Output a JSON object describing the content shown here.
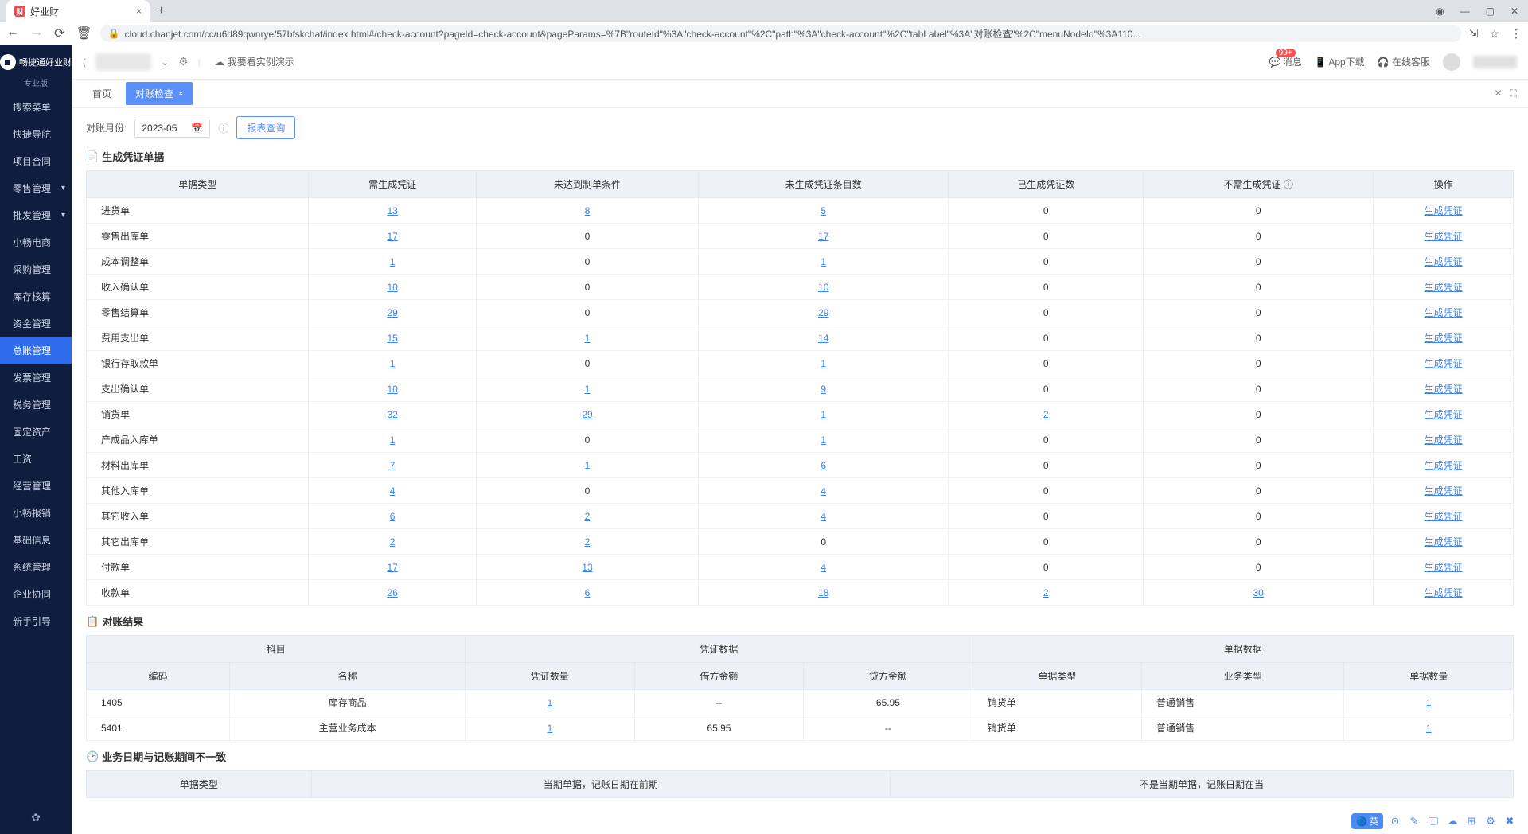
{
  "browser": {
    "tab_title": "好业财",
    "url": "cloud.chanjet.com/cc/u6d89qwnrye/57bfskchat/index.html#/check-account?pageId=check-account&pageParams=%7B\"routeId\"%3A\"check-account\"%2C\"path\"%3A\"check-account\"%2C\"tabLabel\"%3A\"对账检查\"%2C\"menuNodeId\"%3A110..."
  },
  "sidebar": {
    "brand": "畅捷通好业财",
    "brand_sub": "专业版",
    "items": [
      {
        "label": "搜索菜单",
        "expandable": false
      },
      {
        "label": "快捷导航",
        "expandable": false
      },
      {
        "label": "项目合同",
        "expandable": false
      },
      {
        "label": "零售管理",
        "expandable": true
      },
      {
        "label": "批发管理",
        "expandable": true
      },
      {
        "label": "小畅电商",
        "expandable": false
      },
      {
        "label": "采购管理",
        "expandable": false
      },
      {
        "label": "库存核算",
        "expandable": false
      },
      {
        "label": "资金管理",
        "expandable": false
      },
      {
        "label": "总账管理",
        "expandable": false,
        "active": true
      },
      {
        "label": "发票管理",
        "expandable": false
      },
      {
        "label": "税务管理",
        "expandable": false
      },
      {
        "label": "固定资产",
        "expandable": false
      },
      {
        "label": "工资",
        "expandable": false
      },
      {
        "label": "经营管理",
        "expandable": false
      },
      {
        "label": "小畅报销",
        "expandable": false
      },
      {
        "label": "基础信息",
        "expandable": false
      },
      {
        "label": "系统管理",
        "expandable": false
      },
      {
        "label": "企业协同",
        "expandable": false
      },
      {
        "label": "新手引导",
        "expandable": false
      }
    ]
  },
  "topbar": {
    "demo_text": "我要看实例演示",
    "msg_label": "消息",
    "msg_badge": "99+",
    "app_download": "App下载",
    "online_service": "在线客服"
  },
  "tabs": {
    "home": "首页",
    "active": "对账检查"
  },
  "filters": {
    "month_label": "对账月份:",
    "month_value": "2023-05",
    "report_btn": "报表查询"
  },
  "section1": {
    "title": "生成凭证单据",
    "columns": [
      "单据类型",
      "需生成凭证",
      "未达到制单条件",
      "未生成凭证条目数",
      "已生成凭证数",
      "不需生成凭证 ⓘ",
      "操作"
    ],
    "action_label": "生成凭证",
    "rows": [
      {
        "type": "进货单",
        "need": "13",
        "notready": "8",
        "ungencount": "5",
        "gencount": "0",
        "nogen": "0",
        "need_link": true,
        "notready_link": true,
        "ungen_link": true,
        "gen_link": false,
        "nogen_link": false
      },
      {
        "type": "零售出库单",
        "need": "17",
        "notready": "0",
        "ungencount": "17",
        "gencount": "0",
        "nogen": "0",
        "need_link": true,
        "notready_link": false,
        "ungen_link": true,
        "gen_link": false,
        "nogen_link": false
      },
      {
        "type": "成本调整单",
        "need": "1",
        "notready": "0",
        "ungencount": "1",
        "gencount": "0",
        "nogen": "0",
        "need_link": true,
        "notready_link": false,
        "ungen_link": true,
        "gen_link": false,
        "nogen_link": false
      },
      {
        "type": "收入确认单",
        "need": "10",
        "notready": "0",
        "ungencount": "10",
        "gencount": "0",
        "nogen": "0",
        "need_link": true,
        "notready_link": false,
        "ungen_link": true,
        "gen_link": false,
        "nogen_link": false
      },
      {
        "type": "零售结算单",
        "need": "29",
        "notready": "0",
        "ungencount": "29",
        "gencount": "0",
        "nogen": "0",
        "need_link": true,
        "notready_link": false,
        "ungen_link": true,
        "gen_link": false,
        "nogen_link": false
      },
      {
        "type": "费用支出单",
        "need": "15",
        "notready": "1",
        "ungencount": "14",
        "gencount": "0",
        "nogen": "0",
        "need_link": true,
        "notready_link": true,
        "ungen_link": true,
        "gen_link": false,
        "nogen_link": false
      },
      {
        "type": "银行存取款单",
        "need": "1",
        "notready": "0",
        "ungencount": "1",
        "gencount": "0",
        "nogen": "0",
        "need_link": true,
        "notready_link": false,
        "ungen_link": true,
        "gen_link": false,
        "nogen_link": false
      },
      {
        "type": "支出确认单",
        "need": "10",
        "notready": "1",
        "ungencount": "9",
        "gencount": "0",
        "nogen": "0",
        "need_link": true,
        "notready_link": true,
        "ungen_link": true,
        "gen_link": false,
        "nogen_link": false
      },
      {
        "type": "销货单",
        "need": "32",
        "notready": "29",
        "ungencount": "1",
        "gencount": "2",
        "nogen": "0",
        "need_link": true,
        "notready_link": true,
        "ungen_link": true,
        "gen_link": true,
        "nogen_link": false
      },
      {
        "type": "产成品入库单",
        "need": "1",
        "notready": "0",
        "ungencount": "1",
        "gencount": "0",
        "nogen": "0",
        "need_link": true,
        "notready_link": false,
        "ungen_link": true,
        "gen_link": false,
        "nogen_link": false
      },
      {
        "type": "材料出库单",
        "need": "7",
        "notready": "1",
        "ungencount": "6",
        "gencount": "0",
        "nogen": "0",
        "need_link": true,
        "notready_link": true,
        "ungen_link": true,
        "gen_link": false,
        "nogen_link": false
      },
      {
        "type": "其他入库单",
        "need": "4",
        "notready": "0",
        "ungencount": "4",
        "gencount": "0",
        "nogen": "0",
        "need_link": true,
        "notready_link": false,
        "ungen_link": true,
        "gen_link": false,
        "nogen_link": false
      },
      {
        "type": "其它收入单",
        "need": "6",
        "notready": "2",
        "ungencount": "4",
        "gencount": "0",
        "nogen": "0",
        "need_link": true,
        "notready_link": true,
        "ungen_link": true,
        "gen_link": false,
        "nogen_link": false
      },
      {
        "type": "其它出库单",
        "need": "2",
        "notready": "2",
        "ungencount": "0",
        "gencount": "0",
        "nogen": "0",
        "need_link": true,
        "notready_link": true,
        "ungen_link": false,
        "gen_link": false,
        "nogen_link": false
      },
      {
        "type": "付款单",
        "need": "17",
        "notready": "13",
        "ungencount": "4",
        "gencount": "0",
        "nogen": "0",
        "need_link": true,
        "notready_link": true,
        "ungen_link": true,
        "gen_link": false,
        "nogen_link": false
      },
      {
        "type": "收款单",
        "need": "26",
        "notready": "6",
        "ungencount": "18",
        "gencount": "2",
        "nogen": "30",
        "need_link": true,
        "notready_link": true,
        "ungen_link": true,
        "gen_link": true,
        "nogen_link": true
      }
    ]
  },
  "section2": {
    "title": "对账结果",
    "header_row1": [
      "科目",
      "凭证数据",
      "单据数据"
    ],
    "header_row2_subject": [
      "编码",
      "名称"
    ],
    "header_row2_voucher": [
      "凭证数量",
      "借方金额",
      "贷方金额"
    ],
    "header_row2_doc": [
      "单据类型",
      "业务类型",
      "单据数量"
    ],
    "rows": [
      {
        "code": "1405",
        "name": "库存商品",
        "vcount": "1",
        "debit": "--",
        "credit": "65.95",
        "doctype": "销货单",
        "biztype": "普通销售",
        "doccount": "1"
      },
      {
        "code": "5401",
        "name": "主营业务成本",
        "vcount": "1",
        "debit": "65.95",
        "credit": "--",
        "doctype": "销货单",
        "biztype": "普通销售",
        "doccount": "1"
      }
    ]
  },
  "section3": {
    "title": "业务日期与记账期间不一致",
    "columns": [
      "单据类型",
      "当期单据，记账日期在前期",
      "不是当期单据，记账日期在当"
    ]
  }
}
